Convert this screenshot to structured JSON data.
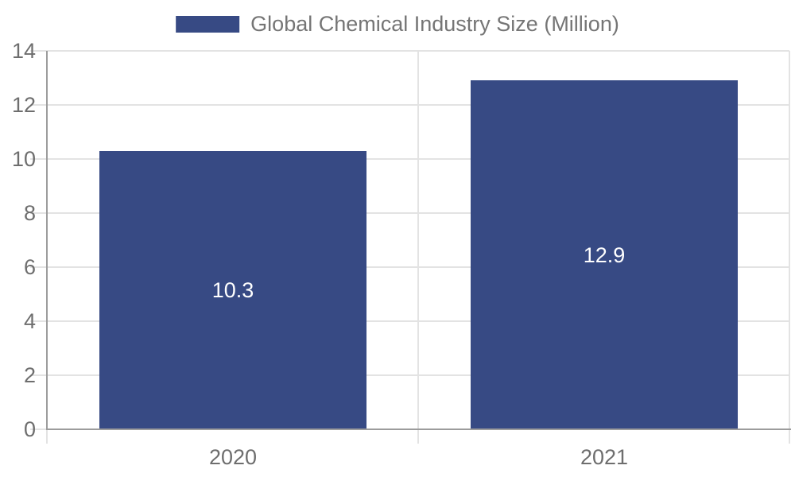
{
  "chart_data": {
    "type": "bar",
    "title": "Global Chemical Industry Size (Million)",
    "categories": [
      "2020",
      "2021"
    ],
    "values": [
      10.3,
      12.9
    ],
    "value_labels": [
      "10.3",
      "12.9"
    ],
    "yticks": [
      0,
      2,
      4,
      6,
      8,
      10,
      12,
      14
    ],
    "ylim": [
      0,
      14
    ],
    "xlabel": "",
    "ylabel": "",
    "grid": true,
    "legend_position": "top-center",
    "value_label_position": "inside-middle",
    "colors": {
      "bar": "#374A84",
      "value_label": "#FFFFFF",
      "grid_line": "#E3E3E3",
      "axis_line": "#9C9C9C",
      "tick_label": "#6E6E6E",
      "legend_text": "#757575",
      "background": "#FFFFFF"
    }
  }
}
